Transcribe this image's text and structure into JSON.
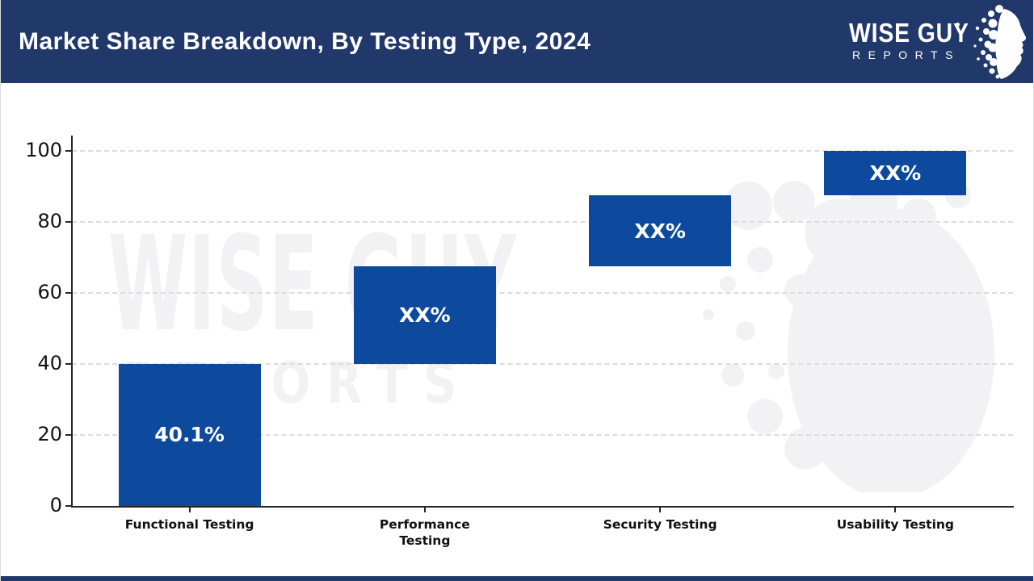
{
  "header": {
    "title": "Market Share Breakdown, By Testing Type, 2024",
    "logo": {
      "line1": "WISE GUY",
      "line2": "REPORTS"
    }
  },
  "watermark": {
    "line1": "WISE GUY",
    "line2": "REPORTS"
  },
  "colors": {
    "header_bg": "#21386a",
    "footer_bg": "#21386a",
    "bar": "#0d4a9e",
    "bar_label_text": "#ffffff",
    "gridline": "#dcdcdc",
    "axis": "#262626",
    "watermark": "#f2f2f4"
  },
  "icons": {
    "logo_face": "dotted-head-profile-icon",
    "watermark_face": "dotted-head-profile-watermark"
  },
  "chart_data": {
    "type": "bar",
    "style": "floating-waterfall",
    "title": "Market Share Breakdown, By Testing Type, 2024",
    "categories": [
      "Functional Testing",
      "Performance Testing",
      "Security Testing",
      "Usability Testing"
    ],
    "category_label_lines": [
      [
        "Functional Testing"
      ],
      [
        "Performance",
        "Testing"
      ],
      [
        "Security Testing"
      ],
      [
        "Usability Testing"
      ]
    ],
    "bars": [
      {
        "category": "Functional Testing",
        "start": 0,
        "end": 40.1,
        "label": "40.1%"
      },
      {
        "category": "Performance Testing",
        "start": 40.1,
        "end": 67.5,
        "label": "XX%"
      },
      {
        "category": "Security Testing",
        "start": 67.5,
        "end": 87.5,
        "label": "XX%"
      },
      {
        "category": "Usability Testing",
        "start": 87.5,
        "end": 100,
        "label": "XX%"
      }
    ],
    "xlabel": "",
    "ylabel": "",
    "ylim": [
      0,
      100
    ],
    "yticks": [
      0,
      20,
      40,
      60,
      80,
      100
    ],
    "grid": "horizontal-dashed",
    "legend": null,
    "bar_color": "#0d4a9e"
  }
}
